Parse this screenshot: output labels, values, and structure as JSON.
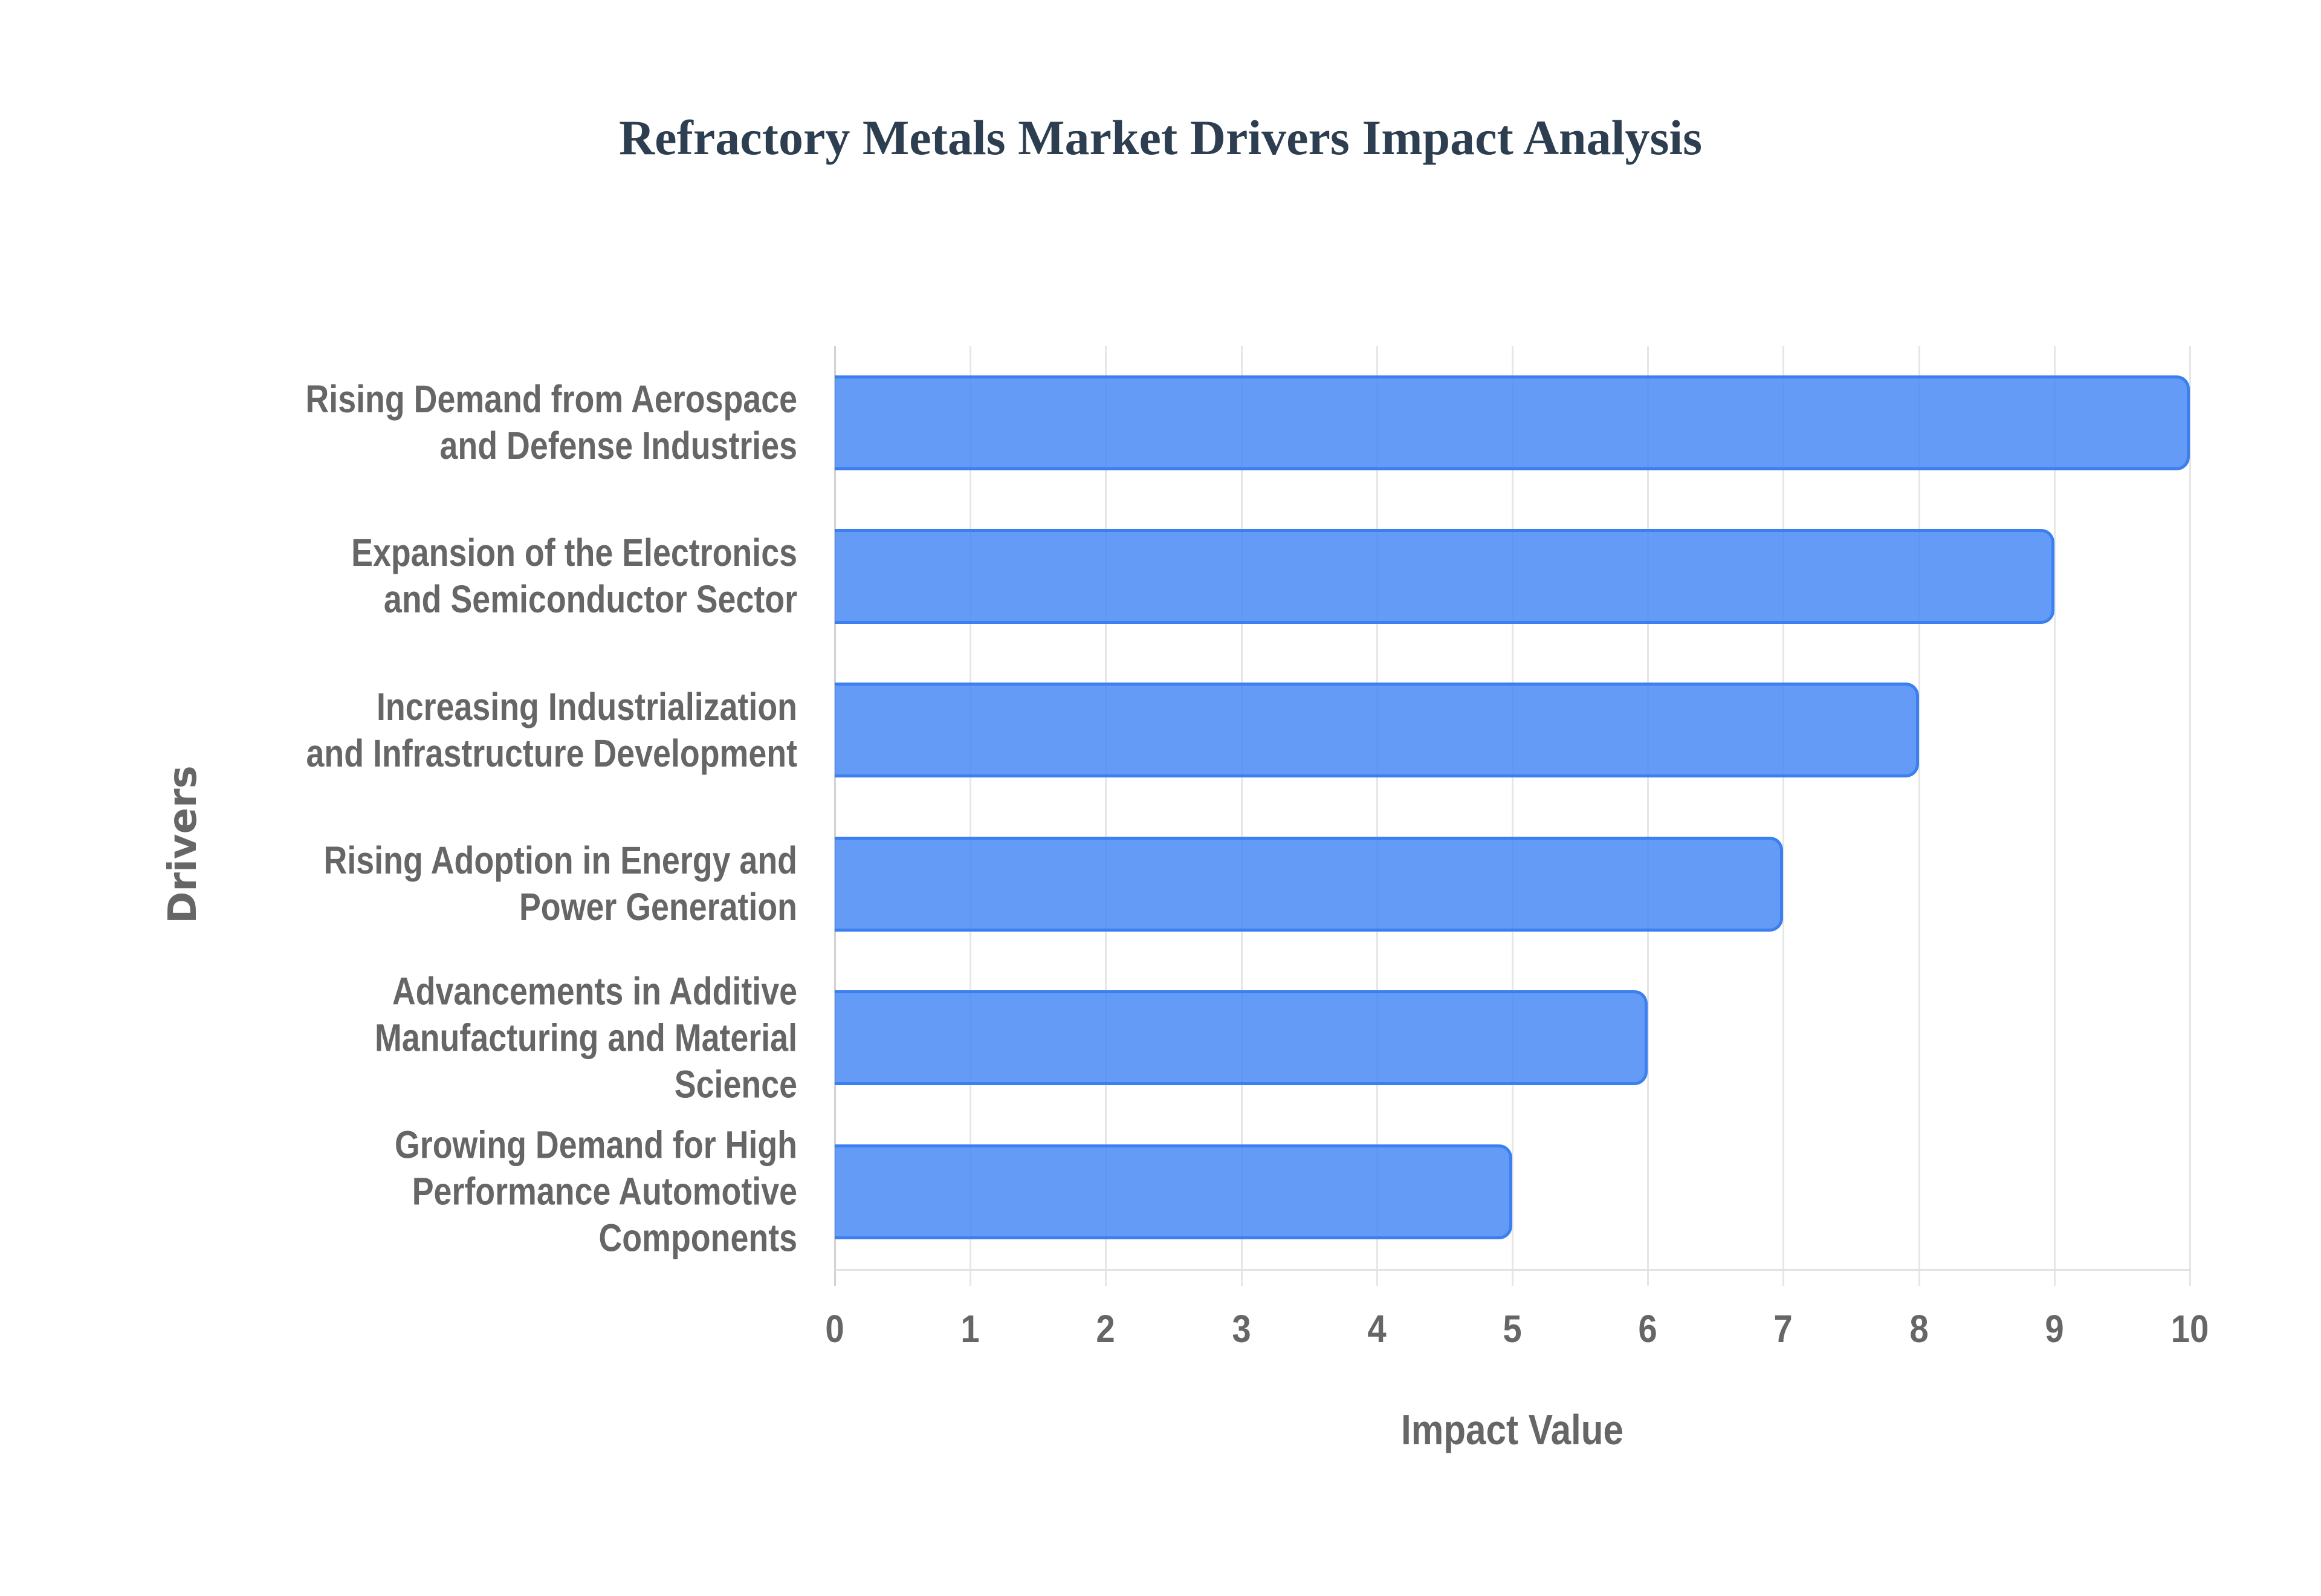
{
  "title": "Refractory Metals Market Drivers Impact Analysis",
  "colors": {
    "title": "#2c3e50",
    "bar_fill": "#6299f5",
    "bar_border": "#3b7ff0",
    "axis_text": "#666666",
    "gridline": "#e6e6e6"
  },
  "axes": {
    "x_title": "Impact Value",
    "y_title": "Drivers",
    "x_ticks": [
      "0",
      "1",
      "2",
      "3",
      "4",
      "5",
      "6",
      "7",
      "8",
      "9",
      "10"
    ]
  },
  "drivers": [
    {
      "lines": [
        "Rising Demand from Aerospace",
        "and Defense Industries"
      ],
      "value": 10
    },
    {
      "lines": [
        "Expansion of the Electronics",
        "and Semiconductor Sector"
      ],
      "value": 9
    },
    {
      "lines": [
        "Increasing Industrialization",
        "and Infrastructure Development"
      ],
      "value": 8
    },
    {
      "lines": [
        "Rising Adoption in Energy and",
        "Power Generation"
      ],
      "value": 7
    },
    {
      "lines": [
        "Advancements in Additive",
        "Manufacturing and Material",
        "Science"
      ],
      "value": 6
    },
    {
      "lines": [
        "Growing Demand for High",
        "Performance Automotive",
        "Components"
      ],
      "value": 5
    }
  ],
  "chart_data": {
    "type": "bar",
    "orientation": "horizontal",
    "title": "Refractory Metals Market Drivers Impact Analysis",
    "xlabel": "Impact Value",
    "ylabel": "Drivers",
    "categories": [
      "Rising Demand from Aerospace and Defense Industries",
      "Expansion of the Electronics and Semiconductor Sector",
      "Increasing Industrialization and Infrastructure Development",
      "Rising Adoption in Energy and Power Generation",
      "Advancements in Additive Manufacturing and Material Science",
      "Growing Demand for High Performance Automotive Components"
    ],
    "values": [
      10,
      9,
      8,
      7,
      6,
      5
    ],
    "xlim": [
      0,
      10
    ],
    "x_ticks": [
      0,
      1,
      2,
      3,
      4,
      5,
      6,
      7,
      8,
      9,
      10
    ],
    "grid": {
      "vertical": true,
      "horizontal": false
    },
    "legend": null
  }
}
